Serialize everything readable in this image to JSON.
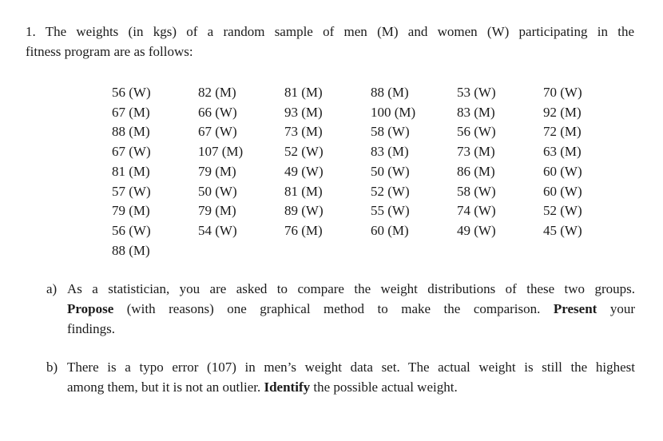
{
  "colors": {
    "background": "#ffffff",
    "text": "#1b1b1b"
  },
  "document": {
    "title_lines": [
      {
        "justify": true,
        "parts": [
          {
            "t": "1. The weights (in kgs) of a random sample of men (M) and women (W) participating in the",
            "b": false
          }
        ]
      },
      {
        "justify": false,
        "parts": [
          {
            "t": "fitness program are as follows:",
            "b": false
          }
        ]
      }
    ],
    "data_table": {
      "rows": [
        [
          "56 (W)",
          "82 (M)",
          "81 (M)",
          "88 (M)",
          "53 (W)",
          "70 (W)"
        ],
        [
          "67 (M)",
          "66 (W)",
          "93 (M)",
          "100 (M)",
          "83 (M)",
          "92 (M)"
        ],
        [
          "88 (M)",
          "67 (W)",
          "73 (M)",
          "58 (W)",
          "56 (W)",
          "72 (M)"
        ],
        [
          "67 (W)",
          "107 (M)",
          "52 (W)",
          "83 (M)",
          "73 (M)",
          "63 (M)"
        ],
        [
          "81 (M)",
          "79 (M)",
          "49 (W)",
          "50 (W)",
          "86 (M)",
          "60 (W)"
        ],
        [
          "57 (W)",
          "50 (W)",
          "81 (M)",
          "52 (W)",
          "58 (W)",
          "60 (W)"
        ],
        [
          "79 (M)",
          "79 (M)",
          "89 (W)",
          "55 (W)",
          "74 (W)",
          "52 (W)"
        ],
        [
          "56 (W)",
          "54 (W)",
          "76 (M)",
          "60 (M)",
          "49 (W)",
          "45 (W)"
        ],
        [
          "88 (M)"
        ]
      ]
    },
    "questions": [
      {
        "label": "a)",
        "lines": [
          {
            "justify": true,
            "parts": [
              {
                "t": "As a statistician, you are asked to compare the weight distributions of these two groups.",
                "b": false
              }
            ]
          },
          {
            "justify": true,
            "parts": [
              {
                "t": "Propose",
                "b": true
              },
              {
                "t": " (with reasons) one graphical method to make the comparison. ",
                "b": false
              },
              {
                "t": "Present",
                "b": true
              },
              {
                "t": " your",
                "b": false
              }
            ]
          },
          {
            "justify": false,
            "parts": [
              {
                "t": "findings.",
                "b": false
              }
            ]
          }
        ]
      },
      {
        "label": "b)",
        "lines": [
          {
            "justify": true,
            "parts": [
              {
                "t": "There is a typo error (107) in men’s weight data set. The actual weight is still the highest",
                "b": false
              }
            ]
          },
          {
            "justify": false,
            "parts": [
              {
                "t": "among them, but it is not an outlier. ",
                "b": false
              },
              {
                "t": "Identify",
                "b": true
              },
              {
                "t": " the possible actual weight.",
                "b": false
              }
            ]
          }
        ]
      }
    ]
  }
}
